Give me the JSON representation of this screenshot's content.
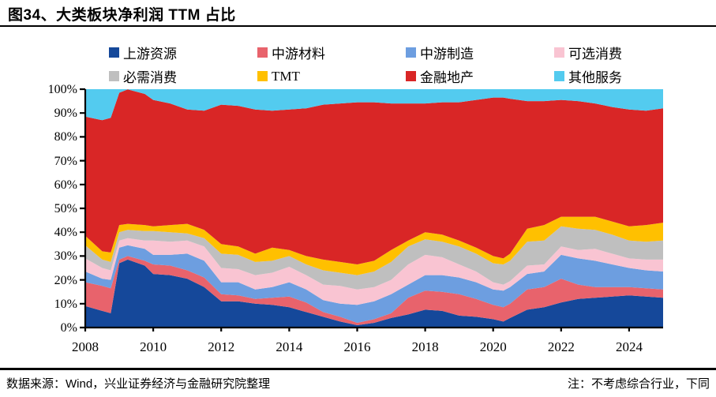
{
  "title": "图34、大类板块净利润 TTM 占比",
  "footer": {
    "source": "数据来源：Wind，兴业证券经济与金融研究院整理",
    "note": "注：不考虑综合行业，下同"
  },
  "chart_data": {
    "type": "area",
    "stacked": true,
    "unit": "%",
    "title": "大类板块净利润 TTM 占比",
    "xlabel": "",
    "ylabel": "",
    "ylim": [
      0,
      100
    ],
    "xlim": [
      2008,
      2025
    ],
    "grid": false,
    "legend_position": "top",
    "yticks": [
      "100%",
      "90%",
      "80%",
      "70%",
      "60%",
      "50%",
      "40%",
      "30%",
      "20%",
      "10%",
      "0%"
    ],
    "xticks": [
      2008,
      2010,
      2012,
      2014,
      2016,
      2018,
      2020,
      2022,
      2024
    ],
    "x": [
      2008.0,
      2008.5,
      2008.75,
      2009.0,
      2009.25,
      2009.75,
      2010.0,
      2010.5,
      2011.0,
      2011.5,
      2012.0,
      2012.5,
      2013.0,
      2013.5,
      2014.0,
      2014.5,
      2015.0,
      2015.5,
      2016.0,
      2016.5,
      2017.0,
      2017.5,
      2018.0,
      2018.5,
      2019.0,
      2019.5,
      2020.0,
      2020.3,
      2020.5,
      2021.0,
      2021.5,
      2022.0,
      2022.5,
      2023.0,
      2023.5,
      2024.0,
      2024.5,
      2025.0
    ],
    "series": [
      {
        "name": "上游资源",
        "color": "#15489A",
        "values": [
          9.0,
          7.0,
          6.0,
          27.0,
          28.5,
          26.0,
          22.5,
          22.0,
          20.5,
          17.0,
          11.0,
          11.0,
          10.0,
          9.5,
          8.5,
          6.5,
          4.5,
          2.5,
          1.0,
          2.0,
          4.0,
          5.5,
          7.5,
          7.0,
          5.0,
          4.5,
          3.5,
          2.5,
          4.0,
          7.5,
          8.5,
          10.5,
          12.0,
          12.5,
          13.0,
          13.5,
          13.0,
          12.5
        ]
      },
      {
        "name": "中游材料",
        "color": "#E8636C",
        "values": [
          10.0,
          10.5,
          10.5,
          1.5,
          1.5,
          2.0,
          4.0,
          4.0,
          3.5,
          4.0,
          3.0,
          2.5,
          2.0,
          3.0,
          4.5,
          4.0,
          2.0,
          2.0,
          1.0,
          1.5,
          2.0,
          7.0,
          8.0,
          8.0,
          9.0,
          7.5,
          6.0,
          6.0,
          6.0,
          8.5,
          8.5,
          10.0,
          6.0,
          4.5,
          4.0,
          3.5,
          3.5,
          3.5
        ]
      },
      {
        "name": "中游制造",
        "color": "#6D9EE0",
        "values": [
          4.5,
          3.0,
          3.5,
          5.0,
          4.5,
          5.0,
          4.0,
          4.5,
          7.0,
          7.0,
          5.0,
          5.5,
          4.0,
          4.5,
          6.0,
          5.5,
          5.0,
          5.5,
          7.5,
          7.5,
          8.0,
          5.5,
          6.5,
          7.0,
          7.0,
          7.0,
          6.5,
          7.0,
          7.0,
          6.5,
          6.5,
          10.0,
          11.0,
          11.0,
          9.5,
          8.0,
          7.5,
          7.5
        ]
      },
      {
        "name": "可选消费",
        "color": "#F9C4D2",
        "values": [
          5.5,
          4.5,
          4.0,
          3.0,
          3.0,
          3.5,
          6.0,
          5.5,
          5.5,
          6.0,
          6.0,
          5.5,
          6.0,
          6.0,
          6.5,
          6.0,
          6.5,
          7.5,
          6.5,
          6.0,
          6.0,
          8.5,
          8.5,
          7.5,
          5.5,
          4.5,
          3.0,
          2.5,
          2.5,
          3.5,
          3.0,
          3.5,
          3.5,
          5.0,
          4.5,
          4.0,
          4.5,
          5.0
        ]
      },
      {
        "name": "必需消费",
        "color": "#BFBFBF",
        "values": [
          5.5,
          3.5,
          3.5,
          3.5,
          3.5,
          4.0,
          4.0,
          4.0,
          3.0,
          3.5,
          6.0,
          6.0,
          5.5,
          5.0,
          4.5,
          4.5,
          6.0,
          5.5,
          6.0,
          6.5,
          7.5,
          7.5,
          6.5,
          6.5,
          7.5,
          7.5,
          8.0,
          8.5,
          8.5,
          10.0,
          10.0,
          8.5,
          9.0,
          8.0,
          8.0,
          7.5,
          7.5,
          8.0
        ]
      },
      {
        "name": "TMT",
        "color": "#FFC000",
        "values": [
          4.0,
          3.5,
          4.0,
          3.0,
          2.5,
          2.5,
          2.0,
          3.0,
          4.0,
          3.5,
          4.0,
          3.5,
          3.5,
          5.5,
          2.5,
          3.5,
          4.5,
          4.5,
          4.5,
          4.5,
          5.0,
          2.5,
          3.0,
          3.0,
          2.5,
          2.5,
          3.0,
          2.5,
          3.0,
          5.5,
          6.5,
          4.0,
          5.0,
          5.5,
          5.5,
          6.0,
          7.0,
          7.5
        ]
      },
      {
        "name": "金融地产",
        "color": "#D92626",
        "values": [
          50.0,
          55.0,
          56.5,
          55.5,
          56.4,
          55.0,
          53.0,
          51.0,
          48.0,
          50.0,
          58.5,
          59.0,
          60.5,
          57.5,
          59.0,
          62.0,
          65.0,
          66.5,
          68.0,
          66.5,
          61.5,
          57.5,
          54.0,
          55.5,
          58.0,
          62.0,
          66.5,
          67.5,
          65.0,
          53.5,
          52.0,
          49.0,
          48.5,
          47.5,
          48.0,
          49.0,
          48.0,
          48.0
        ]
      },
      {
        "name": "其他服务",
        "color": "#53CBEF",
        "values": [
          11.5,
          13.0,
          12.0,
          1.5,
          0.1,
          2.0,
          4.5,
          6.0,
          8.5,
          9.0,
          6.5,
          7.0,
          8.5,
          9.0,
          8.5,
          8.0,
          6.5,
          6.0,
          5.5,
          5.5,
          6.0,
          6.0,
          6.0,
          5.5,
          5.5,
          4.5,
          3.5,
          3.5,
          4.0,
          5.0,
          5.0,
          4.5,
          5.0,
          6.0,
          7.5,
          8.5,
          9.0,
          8.0
        ]
      }
    ]
  }
}
